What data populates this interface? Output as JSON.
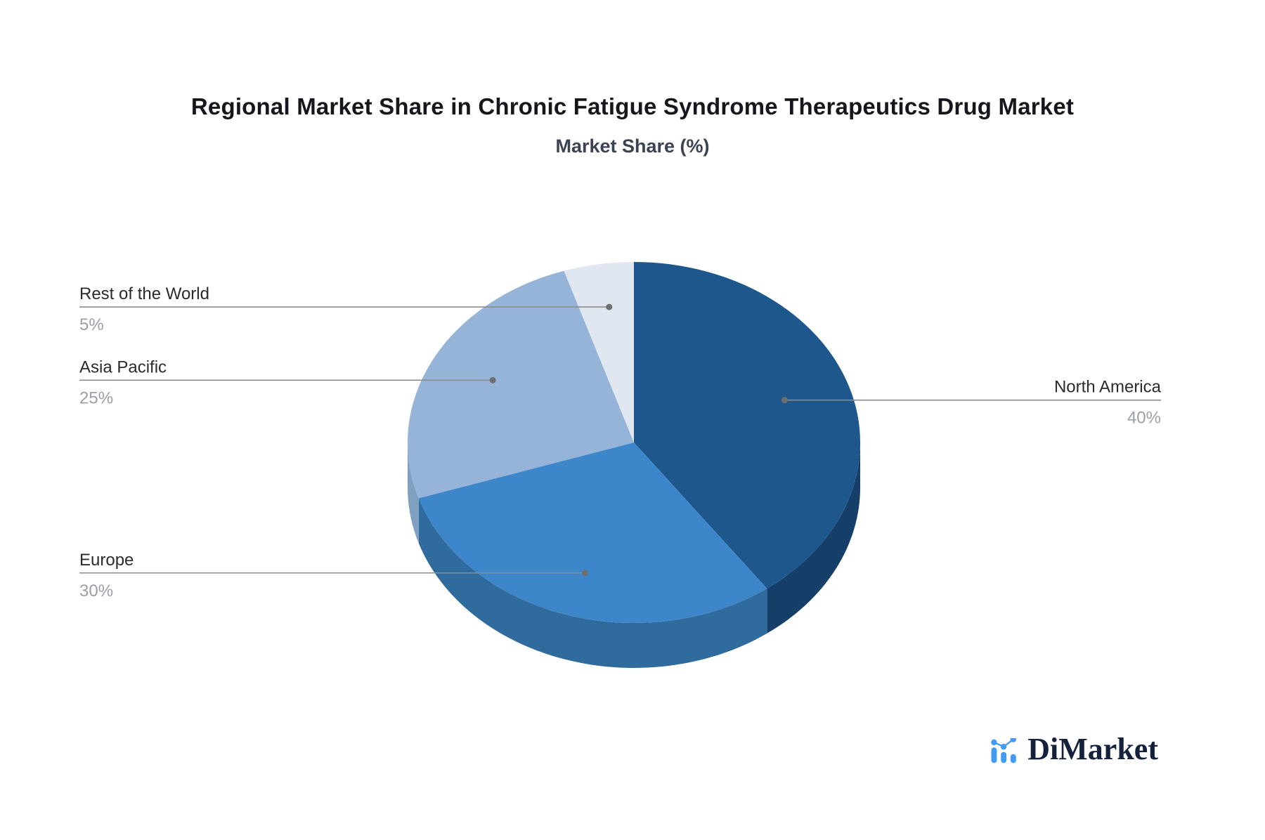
{
  "header": {
    "title": "Regional Market Share in Chronic Fatigue Syndrome Therapeutics Drug Market",
    "subtitle": "Market Share (%)"
  },
  "logo": {
    "text": "DiMarket",
    "icon": "bar-line-chart-icon",
    "icon_color": "#429bf2",
    "text_color": "#14213c"
  },
  "chart_data": {
    "type": "pie",
    "title": "Regional Market Share in Chronic Fatigue Syndrome Therapeutics Drug Market",
    "subtitle": "Market Share (%)",
    "unit": "%",
    "effect": "3d",
    "start_angle": "12-o-clock-clockwise",
    "legend_position": "none",
    "labels": [
      "North America",
      "Europe",
      "Asia Pacific",
      "Rest of the World"
    ],
    "values": [
      40,
      30,
      25,
      5
    ],
    "value_labels": [
      "40%",
      "30%",
      "25%",
      "5%"
    ],
    "colors": [
      "#1d578c",
      "#3d86c9",
      "#95b4d8",
      "#e1e7f0"
    ],
    "side_colors": [
      "#153f68",
      "#2f6b9d",
      "#7fa0c0",
      "#c3cde0"
    ],
    "leader_line_color": "#8c8c8c",
    "leader_dot_color": "#6f6f6f",
    "label_color": "#2b2b2b",
    "value_color": "#9aa0a6"
  }
}
